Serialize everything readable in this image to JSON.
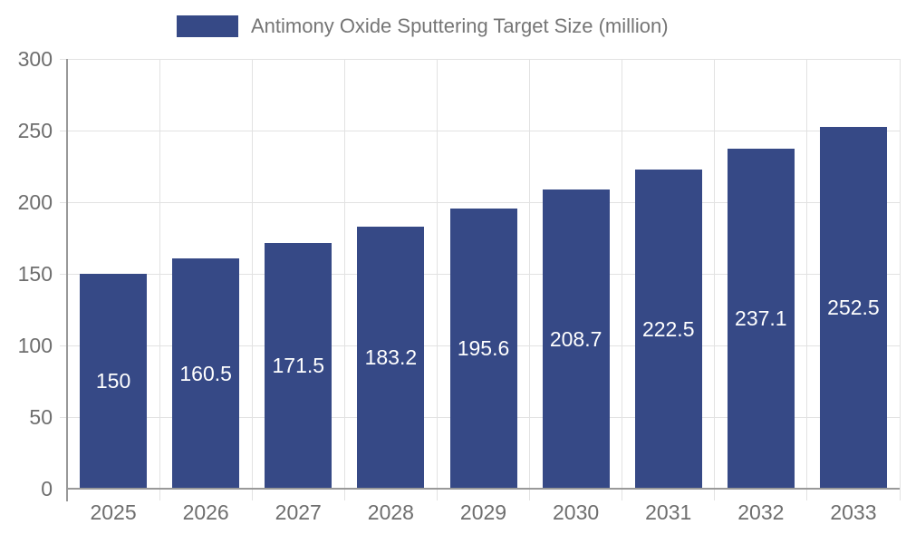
{
  "legend": {
    "label": "Antimony Oxide Sputtering Target Size (million)"
  },
  "colors": {
    "bar": "#364986",
    "grid": "#e2e2e2",
    "axis": "#999999",
    "tick_text": "#6e6e6e",
    "legend_text": "#757575",
    "bar_label_text": "#ffffff",
    "background": "#ffffff"
  },
  "chart_data": {
    "type": "bar",
    "title": "Antimony Oxide Sputtering Target Size (million)",
    "categories": [
      "2025",
      "2026",
      "2027",
      "2028",
      "2029",
      "2030",
      "2031",
      "2032",
      "2033"
    ],
    "values": [
      150,
      160.5,
      171.5,
      183.2,
      195.6,
      208.7,
      222.5,
      237.1,
      252.5
    ],
    "value_labels": [
      "150",
      "160.5",
      "171.5",
      "183.2",
      "195.6",
      "208.7",
      "222.5",
      "237.1",
      "252.5"
    ],
    "xlabel": "",
    "ylabel": "",
    "ylim": [
      0,
      300
    ],
    "yticks": [
      0,
      50,
      100,
      150,
      200,
      250,
      300
    ],
    "grid": true,
    "legend_position": "top"
  }
}
